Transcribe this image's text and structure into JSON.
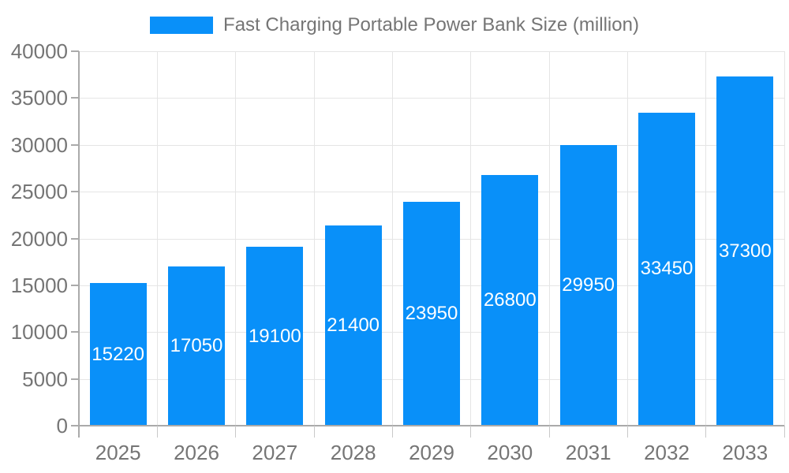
{
  "chart_data": {
    "type": "bar",
    "title": "Fast Charging Portable Power Bank Size (million)",
    "series": [
      {
        "name": "Fast Charging Portable Power Bank Size (million)",
        "values": [
          15220,
          17050,
          19100,
          21400,
          23950,
          26800,
          29950,
          33450,
          37300
        ]
      }
    ],
    "categories": [
      "2025",
      "2026",
      "2027",
      "2028",
      "2029",
      "2030",
      "2031",
      "2032",
      "2033"
    ],
    "values": [
      15220,
      17050,
      19100,
      21400,
      23950,
      26800,
      29950,
      33450,
      37300
    ],
    "data_labels": [
      "15220",
      "17050",
      "19100",
      "21400",
      "23950",
      "26800",
      "29950",
      "33450",
      "37300"
    ],
    "xlabel": "",
    "ylabel": "",
    "ylim": [
      0,
      40000
    ],
    "ytick_step": 5000,
    "yticks": [
      0,
      5000,
      10000,
      15000,
      20000,
      25000,
      30000,
      35000,
      40000
    ],
    "grid": true,
    "legend_position": "top",
    "colors": {
      "bar": "#0990f9",
      "bar_label_text": "#ffffff",
      "axis_text": "#757575",
      "axis_line": "#aaaaaa",
      "gridline": "#e5e5e5",
      "background": "#ffffff"
    }
  }
}
